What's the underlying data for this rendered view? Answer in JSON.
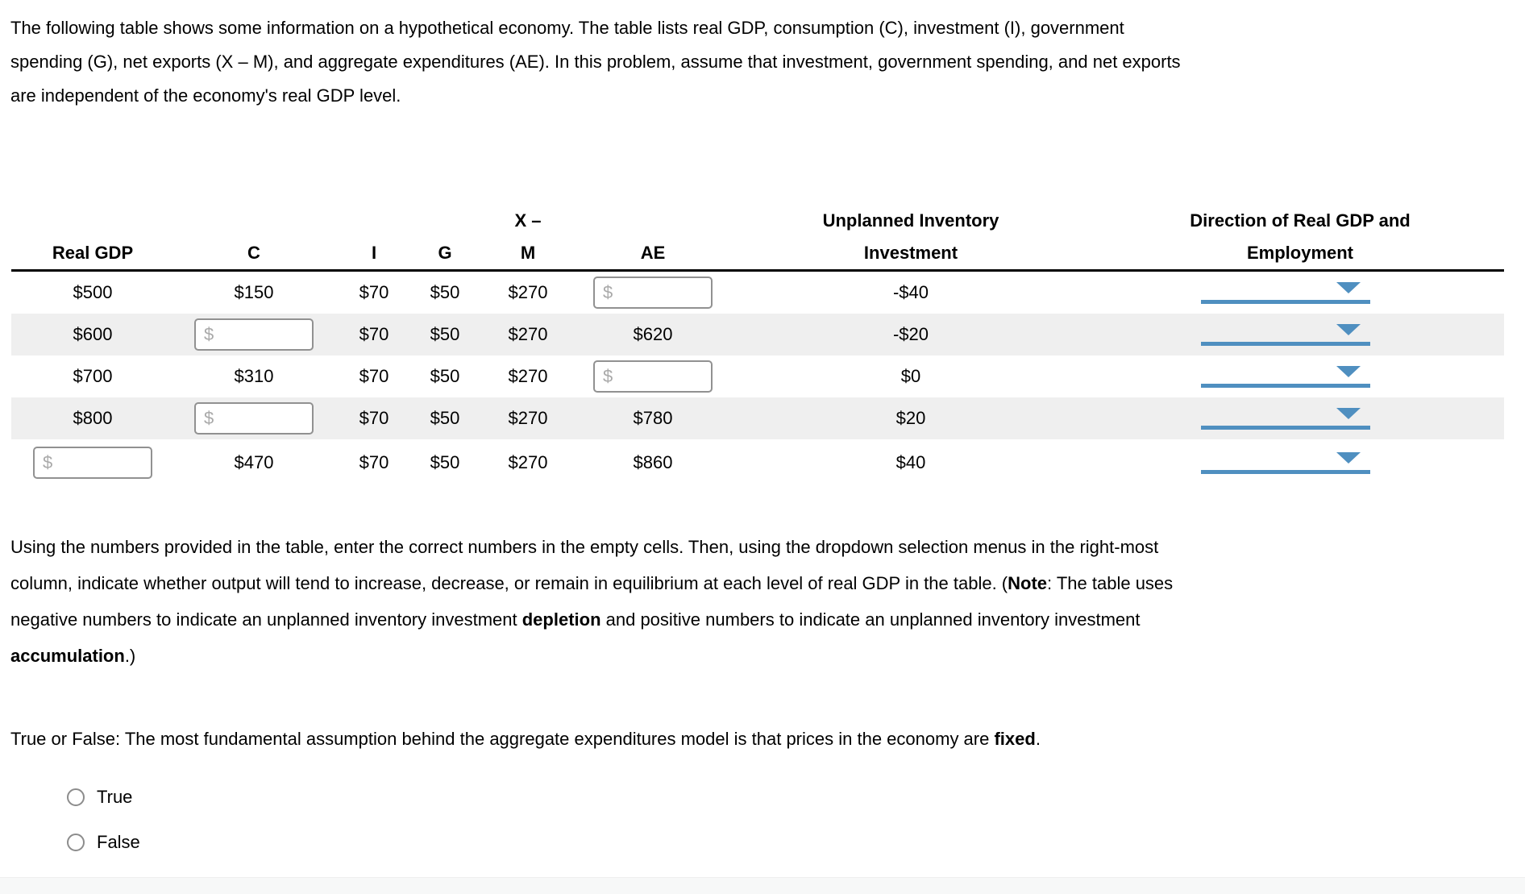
{
  "intro": {
    "lines": [
      "The following table shows some information on a hypothetical economy. The table lists real GDP, consumption (C), investment (I), government",
      "spending (G), net exports (X – M), and aggregate expenditures (AE). In this problem, assume that investment, government spending, and net exports",
      "are independent of the economy's real GDP level."
    ]
  },
  "table": {
    "input_placeholder": "$",
    "headers": [
      {
        "l1": "",
        "l2": "Real GDP"
      },
      {
        "l1": "",
        "l2": "C"
      },
      {
        "l1": "",
        "l2": "I"
      },
      {
        "l1": "",
        "l2": "G"
      },
      {
        "l1": "X –",
        "l2": "M"
      },
      {
        "l1": "",
        "l2": "AE"
      },
      {
        "l1": "Unplanned Inventory",
        "l2": "Investment"
      },
      {
        "l1": "Direction of Real GDP and",
        "l2": "Employment"
      }
    ],
    "rows": [
      {
        "real_gdp": "$500",
        "c": "$150",
        "i": "$70",
        "g": "$50",
        "xm": "$270",
        "ae": "",
        "uii": "-$40"
      },
      {
        "real_gdp": "$600",
        "c": "",
        "i": "$70",
        "g": "$50",
        "xm": "$270",
        "ae": "$620",
        "uii": "-$20"
      },
      {
        "real_gdp": "$700",
        "c": "$310",
        "i": "$70",
        "g": "$50",
        "xm": "$270",
        "ae": "",
        "uii": "$0"
      },
      {
        "real_gdp": "$800",
        "c": "",
        "i": "$70",
        "g": "$50",
        "xm": "$270",
        "ae": "$780",
        "uii": "$20"
      },
      {
        "real_gdp": "",
        "c": "$470",
        "i": "$70",
        "g": "$50",
        "xm": "$270",
        "ae": "$860",
        "uii": "$40"
      }
    ]
  },
  "instructions": {
    "lines": [
      {
        "pre": "Using the numbers provided in the table, enter the correct numbers in the empty cells. Then, using the dropdown selection menus in the right-most",
        "bold": "",
        "post": ""
      },
      {
        "pre": "column, indicate whether output will tend to increase, decrease, or remain in equilibrium at each level of real GDP in the table. (",
        "bold": "Note",
        "post": ": The table uses"
      },
      {
        "pre": "negative numbers to indicate an unplanned inventory investment ",
        "bold": "depletion",
        "post": " and positive numbers to indicate an unplanned inventory investment"
      },
      {
        "pre": "",
        "bold": "accumulation",
        "post": ".)"
      }
    ]
  },
  "true_false": {
    "pre": "True or False: The most fundamental assumption behind the aggregate expenditures model is that prices in the economy are ",
    "bold": "fixed",
    "post": ".",
    "options": [
      "True",
      "False"
    ]
  },
  "colors": {
    "accent_blue": "#4f8fc0",
    "row_stripe": "#efefef",
    "input_border": "#919191"
  }
}
